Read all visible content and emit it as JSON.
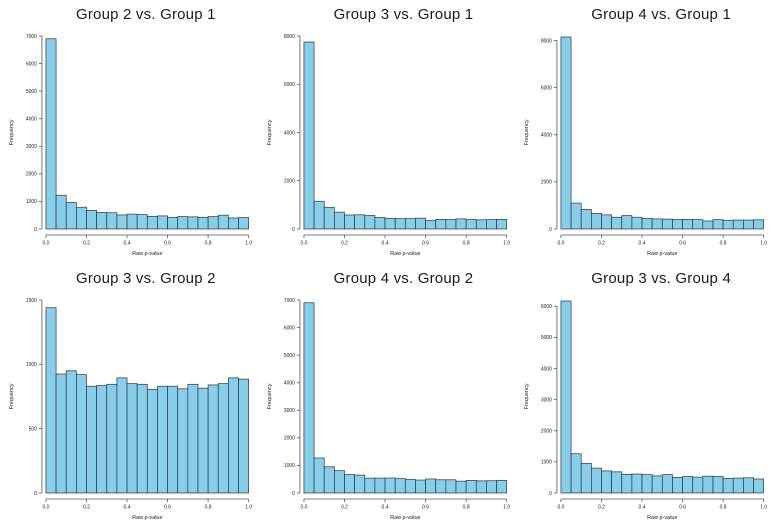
{
  "figure": {
    "layout": "2x3-grid",
    "background": "#ffffff",
    "bar_fill": "#87CEEB",
    "bar_stroke": "#333333",
    "axis_color": "#555555",
    "text_color": "#1a1a1a",
    "xlabel": "Raw p-value",
    "ylabel": "Frequency",
    "x_ticks": [
      "0.0",
      "0.2",
      "0.4",
      "0.6",
      "0.8",
      "1.0"
    ]
  },
  "chart_data": [
    {
      "type": "bar",
      "subtype": "histogram",
      "title": "Group 2 vs. Group 1",
      "xlabel": "Raw p-value",
      "ylabel": "Frequency",
      "x_bins": {
        "start": 0.0,
        "width": 0.05,
        "count": 20
      },
      "x_ticks": [
        "0.0",
        "0.2",
        "0.4",
        "0.6",
        "0.8",
        "1.0"
      ],
      "xlim": [
        0,
        1
      ],
      "y_axis_max": 7000,
      "y_tick_step": 1000,
      "grid": false,
      "values": [
        6900,
        1225,
        960,
        790,
        675,
        600,
        590,
        510,
        540,
        525,
        460,
        475,
        425,
        450,
        440,
        425,
        450,
        500,
        400,
        415
      ]
    },
    {
      "type": "bar",
      "subtype": "histogram",
      "title": "Group 3 vs. Group 1",
      "xlabel": "Raw p-value",
      "ylabel": "Frequency",
      "x_bins": {
        "start": 0.0,
        "width": 0.05,
        "count": 20
      },
      "x_ticks": [
        "0.0",
        "0.2",
        "0.4",
        "0.6",
        "0.8",
        "1.0"
      ],
      "xlim": [
        0,
        1
      ],
      "y_axis_max": 8000,
      "y_tick_step": 2000,
      "grid": false,
      "values": [
        7750,
        1150,
        900,
        700,
        580,
        590,
        560,
        480,
        440,
        430,
        430,
        450,
        350,
        400,
        390,
        420,
        390,
        380,
        390,
        400
      ]
    },
    {
      "type": "bar",
      "subtype": "histogram",
      "title": "Group 4 vs. Group 1",
      "xlabel": "Raw p-value",
      "ylabel": "Frequency",
      "x_bins": {
        "start": 0.0,
        "width": 0.05,
        "count": 20
      },
      "x_ticks": [
        "0.0",
        "0.2",
        "0.4",
        "0.6",
        "0.8",
        "1.0"
      ],
      "xlim": [
        0,
        1
      ],
      "y_axis_max": 8000,
      "y_tick_step": 2000,
      "grid": false,
      "values": [
        8150,
        1100,
        830,
        660,
        600,
        500,
        570,
        500,
        450,
        430,
        420,
        400,
        410,
        400,
        340,
        400,
        370,
        380,
        380,
        390
      ]
    },
    {
      "type": "bar",
      "subtype": "histogram",
      "title": "Group 3 vs. Group 2",
      "xlabel": "Raw p-value",
      "ylabel": "Frequency",
      "x_bins": {
        "start": 0.0,
        "width": 0.05,
        "count": 20
      },
      "x_ticks": [
        "0.0",
        "0.2",
        "0.4",
        "0.6",
        "0.8",
        "1.0"
      ],
      "xlim": [
        0,
        1
      ],
      "y_axis_max": 1500,
      "y_tick_step": 500,
      "grid": false,
      "values": [
        1440,
        925,
        950,
        920,
        830,
        835,
        845,
        895,
        850,
        845,
        805,
        830,
        830,
        810,
        845,
        815,
        840,
        850,
        895,
        885
      ]
    },
    {
      "type": "bar",
      "subtype": "histogram",
      "title": "Group 4 vs. Group 2",
      "xlabel": "Raw p-value",
      "ylabel": "Frequency",
      "x_bins": {
        "start": 0.0,
        "width": 0.05,
        "count": 20
      },
      "x_ticks": [
        "0.0",
        "0.2",
        "0.4",
        "0.6",
        "0.8",
        "1.0"
      ],
      "xlim": [
        0,
        1
      ],
      "y_axis_max": 7000,
      "y_tick_step": 1000,
      "grid": false,
      "values": [
        6900,
        1270,
        950,
        810,
        670,
        650,
        540,
        540,
        545,
        520,
        490,
        470,
        510,
        480,
        480,
        430,
        460,
        440,
        445,
        460
      ]
    },
    {
      "type": "bar",
      "subtype": "histogram",
      "title": "Group 3 vs. Group 4",
      "xlabel": "Raw p-value",
      "ylabel": "Frequency",
      "x_bins": {
        "start": 0.0,
        "width": 0.05,
        "count": 20
      },
      "x_ticks": [
        "0.0",
        "0.2",
        "0.4",
        "0.6",
        "0.8",
        "1.0"
      ],
      "xlim": [
        0,
        1
      ],
      "y_axis_max": 6000,
      "y_tick_step": 1000,
      "grid": false,
      "values": [
        6170,
        1260,
        950,
        800,
        710,
        680,
        600,
        610,
        590,
        550,
        590,
        500,
        530,
        510,
        540,
        530,
        470,
        480,
        490,
        450
      ]
    }
  ]
}
